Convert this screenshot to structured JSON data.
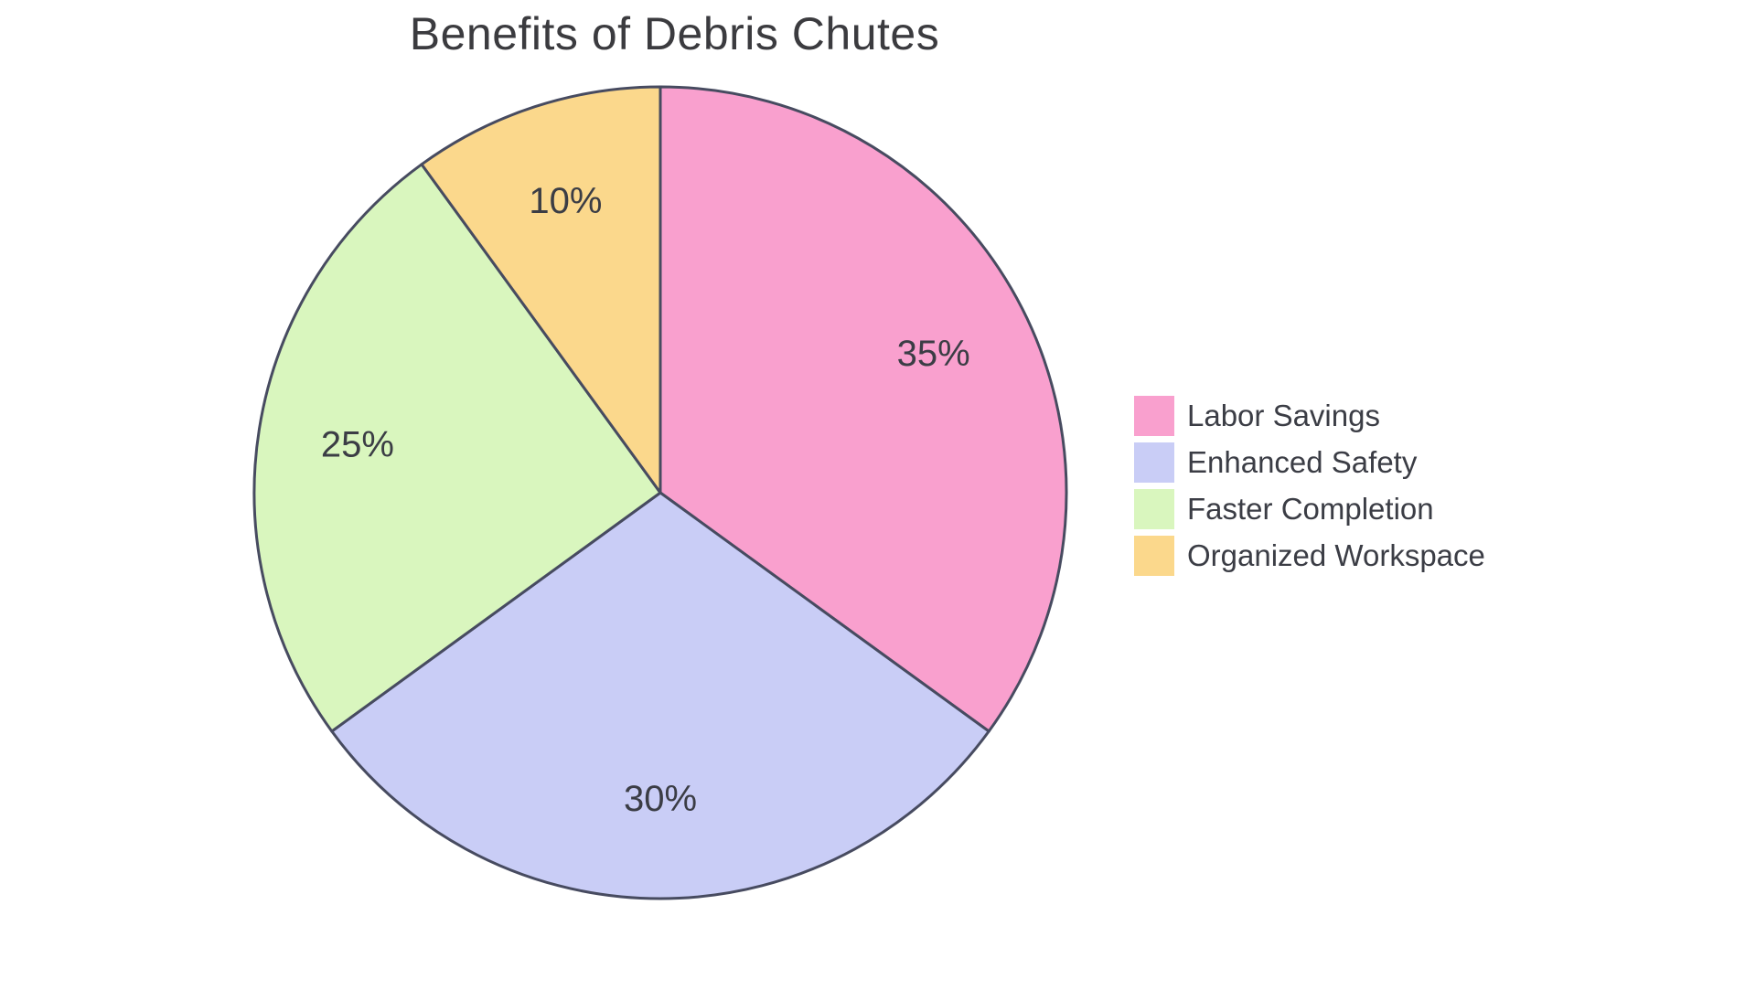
{
  "chart_data": {
    "type": "pie",
    "title": "Benefits of Debris Chutes",
    "labels": [
      "Labor Savings",
      "Enhanced Safety",
      "Faster Completion",
      "Organized Workspace"
    ],
    "values": [
      35,
      30,
      25,
      10
    ],
    "slice_labels": [
      "35%",
      "30%",
      "25%",
      "10%"
    ],
    "colors": [
      "#F9A0CE",
      "#C9CDF6",
      "#D9F6BE",
      "#FBD88C"
    ],
    "outline_color": "#474B60",
    "label_color": "#3B3D45",
    "title_color": "#3B3B3F",
    "start_angle": "12-oclock",
    "direction": "clockwise",
    "legend_position": "right",
    "grid": "off"
  }
}
